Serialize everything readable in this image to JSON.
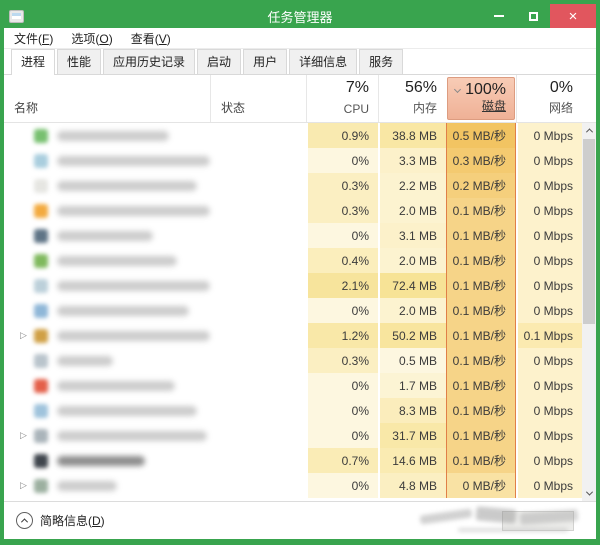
{
  "window": {
    "title": "任务管理器",
    "controls": {
      "minimize": "minimize",
      "maximize": "maximize",
      "close": "×"
    },
    "accent_green": "#39a44e",
    "close_red": "#e1565e"
  },
  "menu": {
    "items": [
      {
        "pre": "文件(",
        "key": "F",
        "suf": ")"
      },
      {
        "pre": "选项(",
        "key": "O",
        "suf": ")"
      },
      {
        "pre": "查看(",
        "key": "V",
        "suf": ")"
      }
    ]
  },
  "tabs": {
    "items": [
      {
        "label": "进程",
        "active": true
      },
      {
        "label": "性能",
        "active": false
      },
      {
        "label": "应用历史记录",
        "active": false
      },
      {
        "label": "启动",
        "active": false
      },
      {
        "label": "用户",
        "active": false
      },
      {
        "label": "详细信息",
        "active": false
      },
      {
        "label": "服务",
        "active": false
      }
    ]
  },
  "columns": {
    "name_label": "名称",
    "status_label": "状态",
    "cpu": {
      "percent": "7%",
      "label": "CPU"
    },
    "memory": {
      "percent": "56%",
      "label": "内存"
    },
    "disk": {
      "percent": "100%",
      "label": "磁盘",
      "sorted": true,
      "highlight": "#f3bfa6",
      "border": "#e08048"
    },
    "network": {
      "percent": "0%",
      "label": "网络"
    }
  },
  "rows": [
    {
      "cpu": "0.9%",
      "memory": "38.8 MB",
      "disk": "0.5 MB/秒",
      "network": "0 Mbps",
      "cpu_bg": "#f9eab0",
      "memory_bg": "#f9e7a4",
      "disk_bg": "#f2c462",
      "network_bg": "#fdf2cc",
      "icon_color": "#77c06f",
      "expandable": false,
      "name_blur_width": 112
    },
    {
      "cpu": "0%",
      "memory": "3.3 MB",
      "disk": "0.3 MB/秒",
      "network": "0 Mbps",
      "cpu_bg": "#fdf7e0",
      "memory_bg": "#fcf1ca",
      "disk_bg": "#f4ca70",
      "network_bg": "#fdf2cc",
      "icon_color": "#a9cede",
      "expandable": false,
      "name_blur_width": 158
    },
    {
      "cpu": "0.3%",
      "memory": "2.2 MB",
      "disk": "0.2 MB/秒",
      "network": "0 Mbps",
      "cpu_bg": "#fbefc2",
      "memory_bg": "#fcf3d0",
      "disk_bg": "#f5cf7c",
      "network_bg": "#fdf2cc",
      "icon_color": "#e6e6e2",
      "expandable": false,
      "name_blur_width": 140
    },
    {
      "cpu": "0.3%",
      "memory": "2.0 MB",
      "disk": "0.1 MB/秒",
      "network": "0 Mbps",
      "cpu_bg": "#fbefc2",
      "memory_bg": "#fcf3d0",
      "disk_bg": "#f6d488",
      "network_bg": "#fdf2cc",
      "icon_color": "#f3aa3e",
      "expandable": false,
      "name_blur_width": 170
    },
    {
      "cpu": "0%",
      "memory": "3.1 MB",
      "disk": "0.1 MB/秒",
      "network": "0 Mbps",
      "cpu_bg": "#fdf7e0",
      "memory_bg": "#fcf1ca",
      "disk_bg": "#f6d488",
      "network_bg": "#fdf2cc",
      "icon_color": "#5f7486",
      "expandable": false,
      "name_blur_width": 96
    },
    {
      "cpu": "0.4%",
      "memory": "2.0 MB",
      "disk": "0.1 MB/秒",
      "network": "0 Mbps",
      "cpu_bg": "#fbeebc",
      "memory_bg": "#fcf3d0",
      "disk_bg": "#f6d488",
      "network_bg": "#fdf2cc",
      "icon_color": "#7fb95d",
      "expandable": false,
      "name_blur_width": 120
    },
    {
      "cpu": "2.1%",
      "memory": "72.4 MB",
      "disk": "0.1 MB/秒",
      "network": "0 Mbps",
      "cpu_bg": "#f7e49c",
      "memory_bg": "#f7e396",
      "disk_bg": "#f6d488",
      "network_bg": "#fdf2cc",
      "icon_color": "#bcd0da",
      "expandable": false,
      "name_blur_width": 168
    },
    {
      "cpu": "0%",
      "memory": "2.0 MB",
      "disk": "0.1 MB/秒",
      "network": "0 Mbps",
      "cpu_bg": "#fdf7e0",
      "memory_bg": "#fcf3d0",
      "disk_bg": "#f6d488",
      "network_bg": "#fdf2cc",
      "icon_color": "#8fb7d8",
      "expandable": false,
      "name_blur_width": 132
    },
    {
      "cpu": "1.2%",
      "memory": "50.2 MB",
      "disk": "0.1 MB/秒",
      "network": "0.1 Mbps",
      "cpu_bg": "#f9e8a8",
      "memory_bg": "#f8e59e",
      "disk_bg": "#f6d488",
      "network_bg": "#fbeab0",
      "icon_color": "#d0a045",
      "expandable": true,
      "name_blur_width": 168
    },
    {
      "cpu": "0.3%",
      "memory": "0.5 MB",
      "disk": "0.1 MB/秒",
      "network": "0 Mbps",
      "cpu_bg": "#fbefc2",
      "memory_bg": "#fdf7e0",
      "disk_bg": "#f6d488",
      "network_bg": "#fdf2cc",
      "icon_color": "#b9c4cc",
      "expandable": false,
      "name_blur_width": 56
    },
    {
      "cpu": "0%",
      "memory": "1.7 MB",
      "disk": "0.1 MB/秒",
      "network": "0 Mbps",
      "cpu_bg": "#fdf7e0",
      "memory_bg": "#fcf4d4",
      "disk_bg": "#f6d488",
      "network_bg": "#fdf2cc",
      "icon_color": "#e4604a",
      "expandable": false,
      "name_blur_width": 118
    },
    {
      "cpu": "0%",
      "memory": "8.3 MB",
      "disk": "0.1 MB/秒",
      "network": "0 Mbps",
      "cpu_bg": "#fdf7e0",
      "memory_bg": "#fbedbc",
      "disk_bg": "#f6d488",
      "network_bg": "#fdf2cc",
      "icon_color": "#9fc3dc",
      "expandable": false,
      "name_blur_width": 140
    },
    {
      "cpu": "0%",
      "memory": "31.7 MB",
      "disk": "0.1 MB/秒",
      "network": "0 Mbps",
      "cpu_bg": "#fdf7e0",
      "memory_bg": "#f9e8a8",
      "disk_bg": "#f6d488",
      "network_bg": "#fdf2cc",
      "icon_color": "#aab4ba",
      "expandable": true,
      "name_blur_width": 150
    },
    {
      "cpu": "0.7%",
      "memory": "14.6 MB",
      "disk": "0.1 MB/秒",
      "network": "0 Mbps",
      "cpu_bg": "#faecb6",
      "memory_bg": "#faebb2",
      "disk_bg": "#f6d488",
      "network_bg": "#fdf2cc",
      "icon_color": "#3f454d",
      "expandable": false,
      "name_blur_width": 88,
      "name_blur_color": "#6f6f6f"
    },
    {
      "cpu": "0%",
      "memory": "4.8 MB",
      "disk": "0 MB/秒",
      "network": "0 Mbps",
      "cpu_bg": "#fdf7e0",
      "memory_bg": "#fbefc2",
      "disk_bg": "#f9e2a4",
      "network_bg": "#fdf2cc",
      "icon_color": "#9cb0a0",
      "expandable": true,
      "name_blur_width": 60
    }
  ],
  "footer": {
    "toggle_pre": "简略信息(",
    "toggle_key": "D",
    "toggle_suf": ")"
  }
}
